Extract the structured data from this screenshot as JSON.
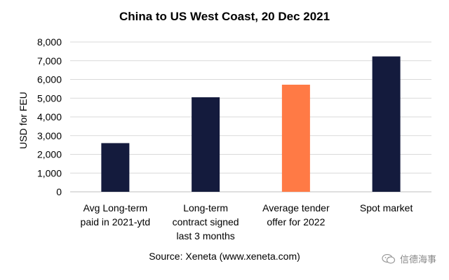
{
  "chart_data": {
    "type": "bar",
    "title": "China to US West Coast, 20 Dec 2021",
    "xlabel": "",
    "ylabel": "USD for FEU",
    "ylim": [
      0,
      8000
    ],
    "yticks": [
      "0",
      "1,000",
      "2,000",
      "3,000",
      "4,000",
      "5,000",
      "6,000",
      "7,000",
      "8,000"
    ],
    "ytick_values": [
      0,
      1000,
      2000,
      3000,
      4000,
      5000,
      6000,
      7000,
      8000
    ],
    "grid": true,
    "categories": [
      [
        "Avg Long-term",
        "paid in 2021-ytd"
      ],
      [
        "Long-term",
        "contract signed",
        "last 3 months"
      ],
      [
        "Average tender",
        "offer for 2022"
      ],
      [
        "Spot market"
      ]
    ],
    "values": [
      2600,
      5050,
      5720,
      7230
    ],
    "bar_colors": [
      "#141b3d",
      "#141b3d",
      "#ff7a45",
      "#141b3d"
    ],
    "source": "Source: Xeneta (www.xeneta.com)"
  },
  "watermark": {
    "text": "信德海事",
    "icon": "wechat-icon"
  },
  "colors": {
    "grid": "#d9d9d9",
    "axis": "#bfbfbf",
    "text": "#000000"
  }
}
